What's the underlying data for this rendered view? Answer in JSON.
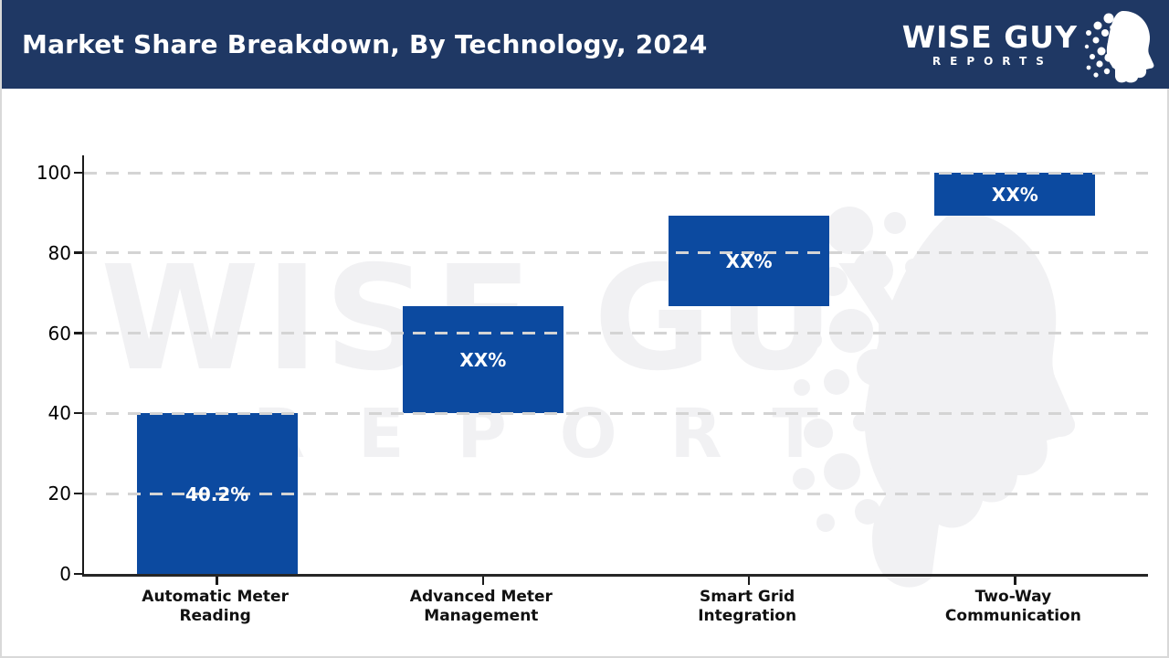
{
  "header": {
    "bg_color": "#1f3864",
    "title": "Market Share Breakdown, By Technology, 2024",
    "logo": {
      "name": "WISE GUY",
      "sub": "REPORTS"
    }
  },
  "watermark": {
    "line1": "WISE GUY",
    "line2": "REPORTS"
  },
  "chart_data": {
    "type": "bar",
    "subtype": "waterfall (floating segment bars)",
    "title": "Market Share Breakdown, By Technology, 2024",
    "categories": [
      "Automatic Meter Reading",
      "Advanced Meter Management",
      "Smart Grid Integration",
      "Two-Way Communication"
    ],
    "category_label_lines": [
      [
        "Automatic Meter",
        "Reading"
      ],
      [
        "Advanced Meter",
        "Management"
      ],
      [
        "Smart Grid",
        "Integration"
      ],
      [
        "Two-Way",
        "Communication"
      ]
    ],
    "series": [
      {
        "name": "Market share (%)",
        "segments": [
          {
            "category": "Automatic Meter Reading",
            "start": 0,
            "end": 40.2,
            "label": "40.2%"
          },
          {
            "category": "Advanced Meter Management",
            "start": 40.2,
            "end": 66.7,
            "label": "XX%"
          },
          {
            "category": "Smart Grid Integration",
            "start": 66.7,
            "end": 89.4,
            "label": "XX%"
          },
          {
            "category": "Two-Way Communication",
            "start": 89.4,
            "end": 100,
            "label": "XX%"
          }
        ]
      }
    ],
    "ylim": [
      0,
      104
    ],
    "yticks": [
      0,
      20,
      40,
      60,
      80,
      100
    ],
    "grid": "horizontal dashed gridlines drawn over bars",
    "legend_position": "none",
    "bar_color": "#0c4aa0",
    "bar_label_color": "#ffffff",
    "axis_color": "#1a1a1a",
    "gridline_color": "#d4d4d4"
  }
}
